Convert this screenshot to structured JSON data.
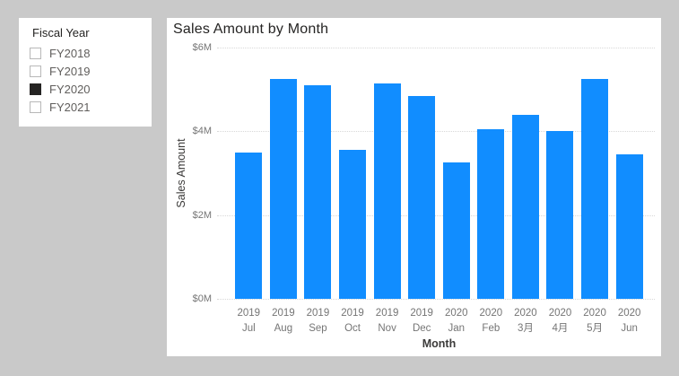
{
  "slicer": {
    "title": "Fiscal Year",
    "items": [
      {
        "label": "FY2018",
        "checked": false
      },
      {
        "label": "FY2019",
        "checked": false
      },
      {
        "label": "FY2020",
        "checked": true
      },
      {
        "label": "FY2021",
        "checked": false
      }
    ]
  },
  "chart_data": {
    "type": "bar",
    "title": "Sales Amount by Month",
    "xlabel": "Month",
    "ylabel": "Sales Amount",
    "ylim": [
      0,
      6
    ],
    "grid": "horizontal-dotted",
    "legend": "none",
    "yticks": [
      {
        "label": "$0M",
        "value": 0
      },
      {
        "label": "$2M",
        "value": 2
      },
      {
        "label": "$4M",
        "value": 4
      },
      {
        "label": "$6M",
        "value": 6
      }
    ],
    "categories": [
      {
        "year": "2019",
        "month": "Jul"
      },
      {
        "year": "2019",
        "month": "Aug"
      },
      {
        "year": "2019",
        "month": "Sep"
      },
      {
        "year": "2019",
        "month": "Oct"
      },
      {
        "year": "2019",
        "month": "Nov"
      },
      {
        "year": "2019",
        "month": "Dec"
      },
      {
        "year": "2020",
        "month": "Jan"
      },
      {
        "year": "2020",
        "month": "Feb"
      },
      {
        "year": "2020",
        "month": "3月"
      },
      {
        "year": "2020",
        "month": "4月"
      },
      {
        "year": "2020",
        "month": "5月"
      },
      {
        "year": "2020",
        "month": "Jun"
      }
    ],
    "values_millions_usd": [
      3.5,
      5.25,
      5.1,
      3.55,
      5.15,
      4.85,
      3.25,
      4.05,
      4.4,
      4.0,
      5.25,
      3.45
    ]
  },
  "colors": {
    "bar": "#118DFF",
    "page_background": "#c9c9c9",
    "card_background": "#ffffff",
    "title_text": "#252423",
    "tick_text": "#757575",
    "axis_title_text": "#3b3a39",
    "gridline": "#d8d8d8",
    "checkbox_checked": "#252423",
    "checkbox_border": "#b8b8b8",
    "item_text": "#605e5c"
  }
}
